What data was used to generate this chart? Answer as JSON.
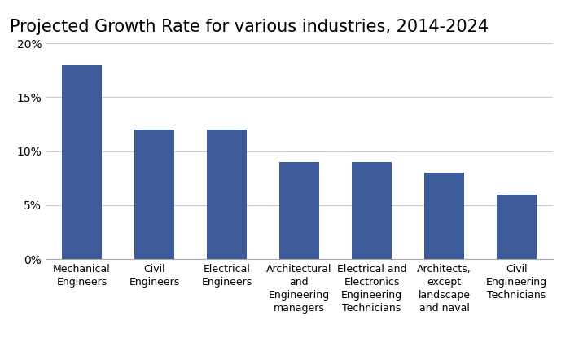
{
  "title": "Projected Growth Rate for various industries, 2014-2024",
  "categories": [
    "Mechanical\nEngineers",
    "Civil\nEngineers",
    "Electrical\nEngineers",
    "Architectural\nand\nEngineering\nmanagers",
    "Electrical and\nElectronics\nEngineering\nTechnicians",
    "Architects,\nexcept\nlandscape\nand naval",
    "Civil\nEngineering\nTechnicians"
  ],
  "values": [
    18,
    12,
    12,
    9,
    9,
    8,
    6
  ],
  "bar_color": "#3d5a99",
  "ylim": [
    0,
    20
  ],
  "yticks": [
    0,
    5,
    10,
    15,
    20
  ],
  "ytick_labels": [
    "0%",
    "5%",
    "10%",
    "15%",
    "20%"
  ],
  "title_fontsize": 15,
  "tick_fontsize": 10,
  "background_color": "#ffffff",
  "grid_color": "#cccccc"
}
